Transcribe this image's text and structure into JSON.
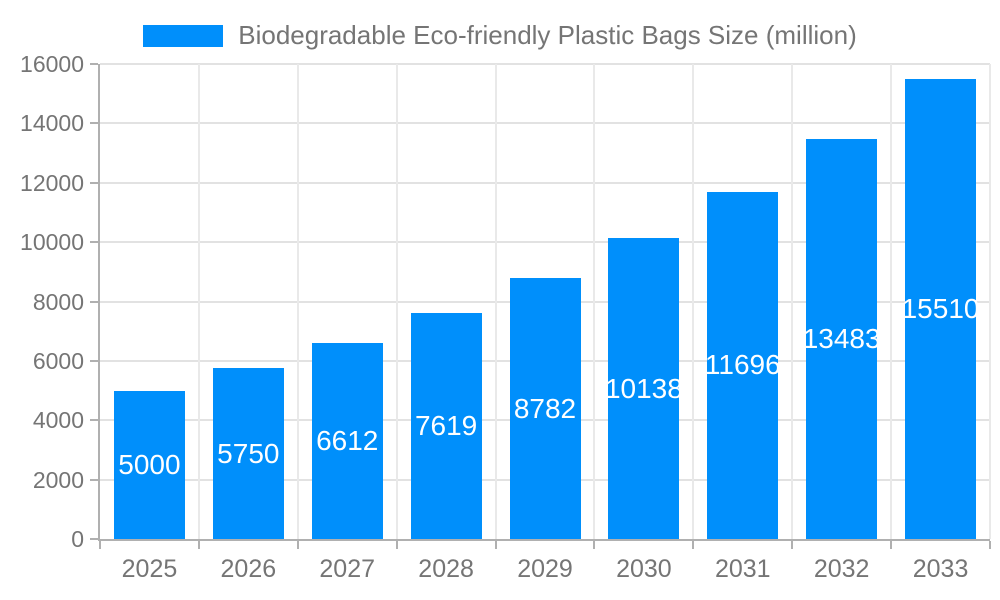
{
  "legend": {
    "label": "Biodegradable Eco-friendly Plastic Bags Size (million)"
  },
  "chart_data": {
    "type": "bar",
    "title": "Biodegradable Eco-friendly Plastic Bags Size (million)",
    "categories": [
      "2025",
      "2026",
      "2027",
      "2028",
      "2029",
      "2030",
      "2031",
      "2032",
      "2033"
    ],
    "values": [
      5000,
      5750,
      6612,
      7619,
      8782,
      10138,
      11696,
      13483,
      15510
    ],
    "xlabel": "",
    "ylabel": "",
    "ylim": [
      0,
      16000
    ],
    "ytick_step": 2000,
    "ytick_labels": [
      "0",
      "2000",
      "4000",
      "6000",
      "8000",
      "10000",
      "12000",
      "14000",
      "16000"
    ],
    "grid": true,
    "legend_position": "top",
    "data_labels": "inside-center",
    "colors": {
      "bar": "#008FFB",
      "data_label": "#ffffff",
      "axis_text": "#757575",
      "legend_text": "#757575",
      "gridline_h": "#e2e2e2",
      "gridline_v": "#e9e9e9",
      "axis_line": "#b0b0b0"
    }
  }
}
